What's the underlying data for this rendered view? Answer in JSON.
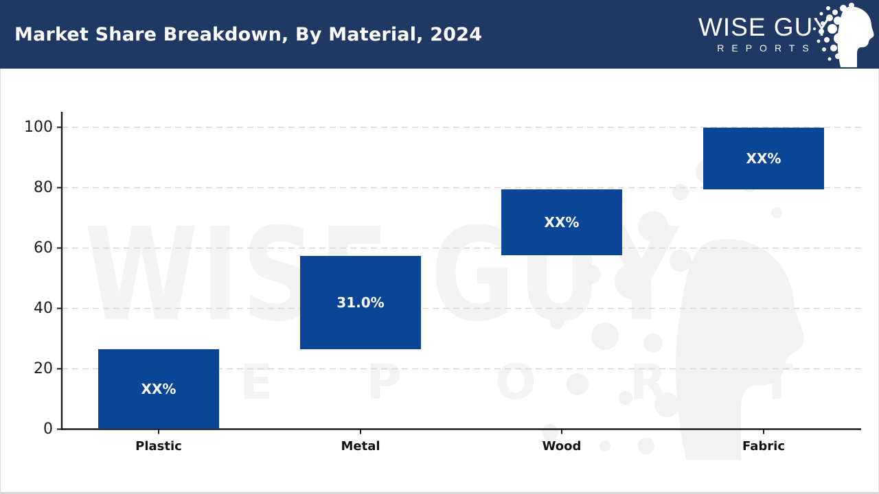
{
  "header": {
    "title": "Market Share Breakdown, By Material, 2024",
    "logo": {
      "line1": "WISE GUY",
      "line2": "REPORTS"
    }
  },
  "watermark": {
    "line1": "WISE GUY",
    "line2": "R E P O R T S"
  },
  "chart_data": {
    "type": "bar",
    "subtype": "waterfall",
    "title": "Market Share Breakdown, By Material, 2024",
    "categories": [
      "Plastic",
      "Metal",
      "Wood",
      "Fabric"
    ],
    "segments": [
      {
        "category": "Plastic",
        "start": 0,
        "end": 26.5,
        "label": "XX%"
      },
      {
        "category": "Metal",
        "start": 26.5,
        "end": 57.5,
        "label": "31.0%"
      },
      {
        "category": "Wood",
        "start": 57.5,
        "end": 79.5,
        "label": "XX%"
      },
      {
        "category": "Fabric",
        "start": 79.5,
        "end": 100,
        "label": "XX%"
      }
    ],
    "yticks": [
      0,
      20,
      40,
      60,
      80,
      100
    ],
    "ylim": [
      0,
      105
    ],
    "xlabel": "",
    "ylabel": "",
    "grid": true,
    "legend": false,
    "bar_color": "#0b4596",
    "grid_color": "#d8d8d8",
    "axis_color": "#1a1a1a",
    "header_color": "#1f3864"
  }
}
